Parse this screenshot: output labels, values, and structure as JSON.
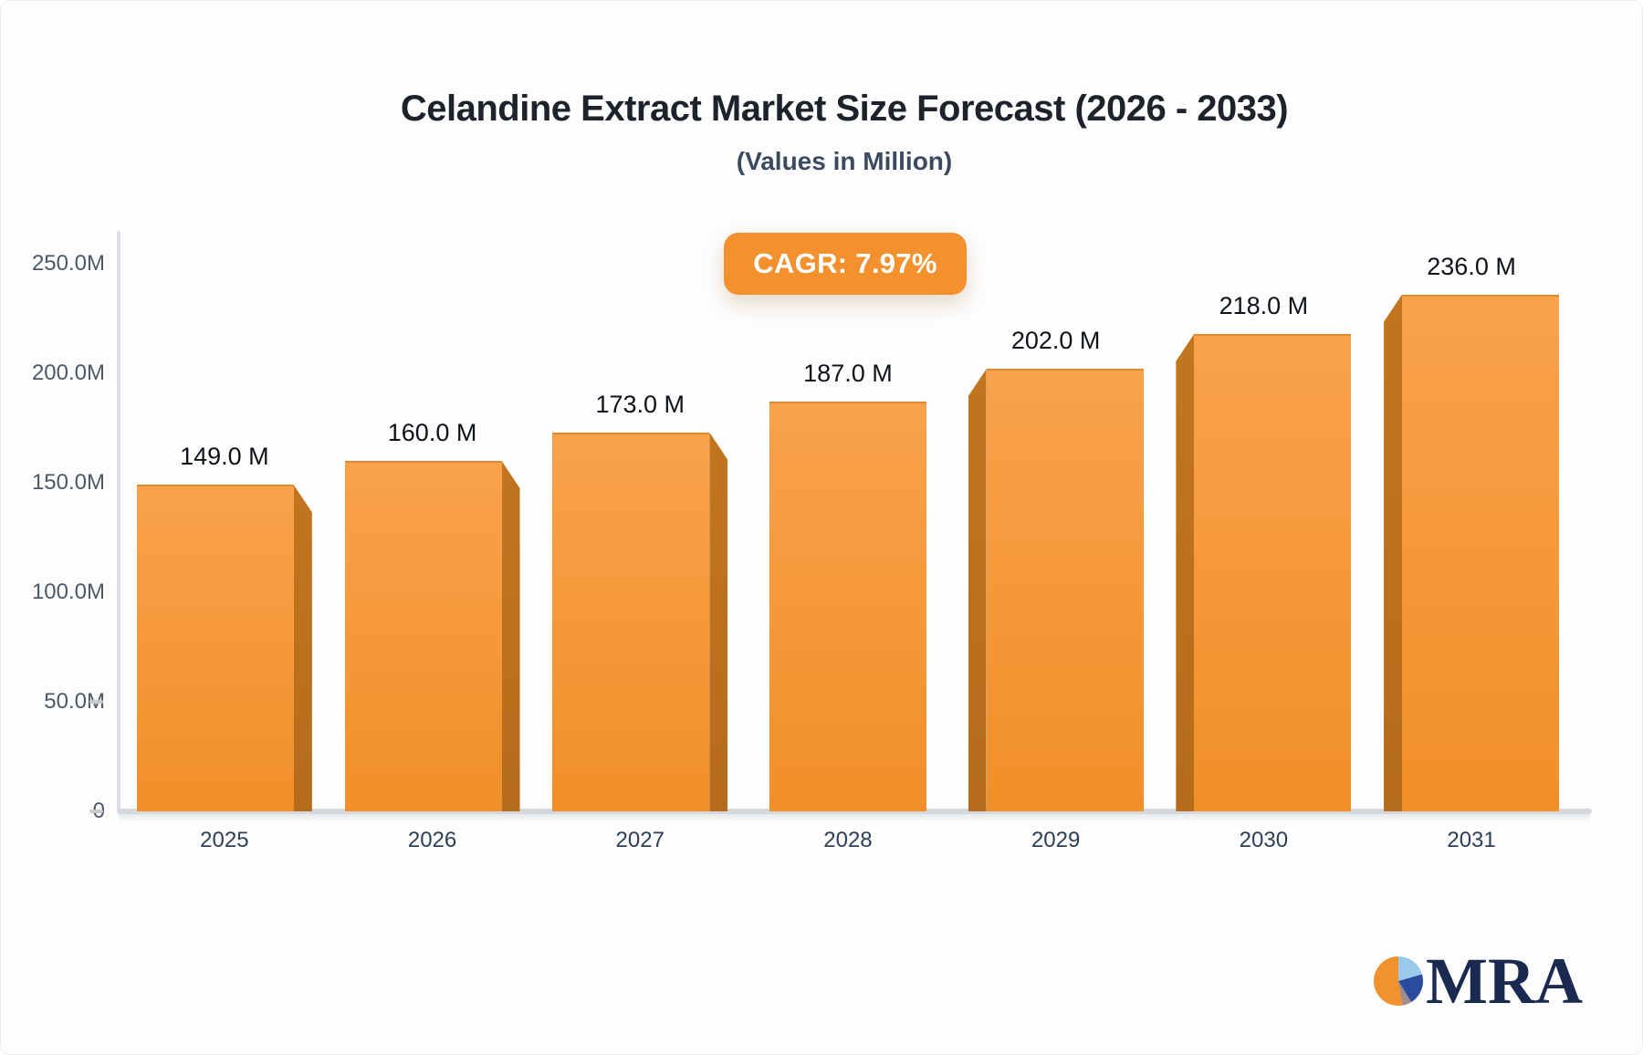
{
  "chart_data": {
    "type": "bar",
    "title": "Celandine Extract Market Size Forecast (2026 - 2033)",
    "subtitle": "(Values in Million)",
    "cagr_label": "CAGR: 7.97%",
    "categories": [
      "2025",
      "2026",
      "2027",
      "2028",
      "2029",
      "2030",
      "2031"
    ],
    "values": [
      149,
      160,
      173,
      187,
      202,
      218,
      236
    ],
    "value_labels": [
      "149.0 M",
      "160.0 M",
      "173.0 M",
      "187.0 M",
      "202.0 M",
      "218.0 M",
      "236.0 M"
    ],
    "y_ticks": [
      {
        "label": "250.0M",
        "value": 250,
        "dash": false
      },
      {
        "label": "200.0M",
        "value": 200,
        "dash": false
      },
      {
        "label": "150.0M",
        "value": 150,
        "dash": false
      },
      {
        "label": "100.0M",
        "value": 100,
        "dash": false
      },
      {
        "label": "50.0M",
        "value": 50,
        "dash": true
      },
      {
        "label": "0",
        "value": 0,
        "dash": true
      }
    ],
    "ylim": [
      0,
      250
    ],
    "grid": false,
    "legend": null,
    "bar_style": "3d-bevel"
  },
  "colors": {
    "bar_face_top": "#F9A24C",
    "bar_face_bottom": "#F18F29",
    "bar_side": "#C2751E",
    "axis_line": "#DCDFE3",
    "baseline": "#D4D7DB",
    "cagr_bg": "#F3912E",
    "cagr_text": "#FFFFFF",
    "title_text": "#1D222B",
    "subtitle_text": "#3C4A60",
    "tick_text": "#4C5866",
    "value_text": "#0E1319",
    "year_text": "#2E4055"
  },
  "logo": {
    "text": "MRA",
    "text_color": "#19294F",
    "pie_colors": {
      "light_blue": "#9BCBEC",
      "navy": "#2B4C9C",
      "gray": "#9D8F90",
      "orange": "#F1922E"
    }
  }
}
